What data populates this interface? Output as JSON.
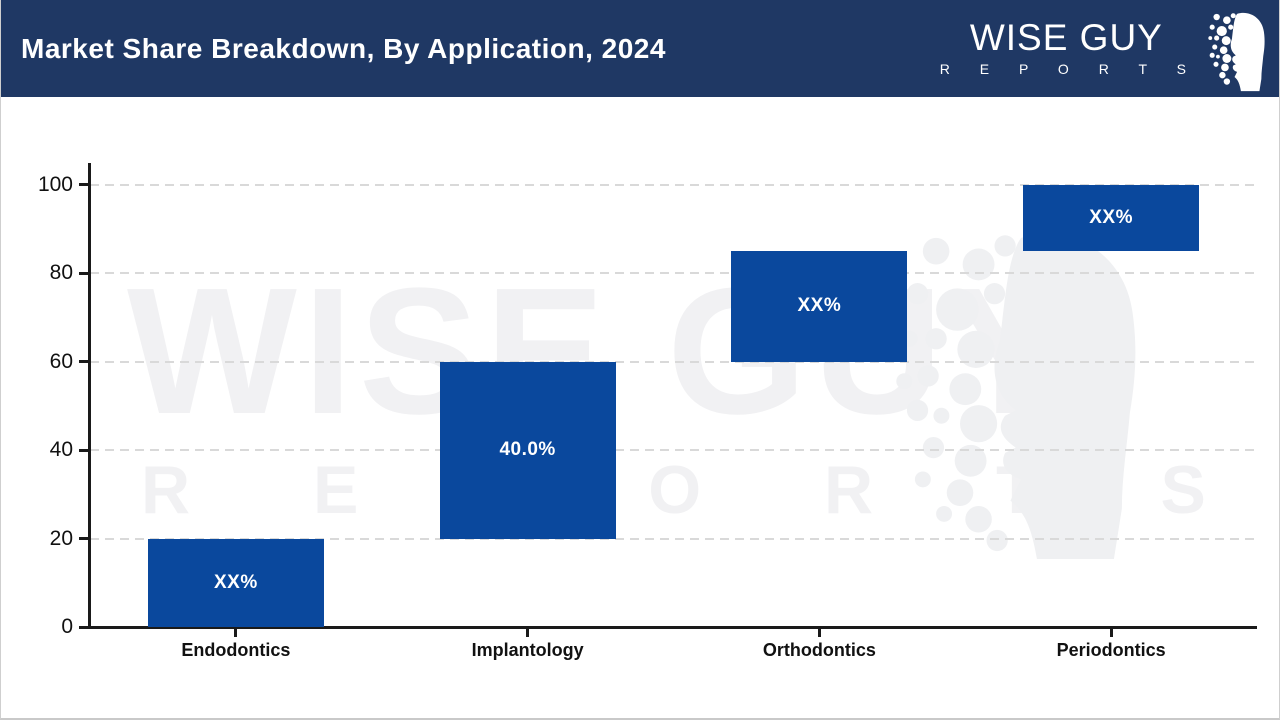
{
  "page": {
    "background": "#ffffff",
    "border_color": "#c9c9c9"
  },
  "header": {
    "background": "#1f3864",
    "logo": {
      "line1": "WISE GUY",
      "line2": "R E P O R T S"
    }
  },
  "watermark": {
    "line1": "WISE GUY",
    "line2": "R E P O R T S"
  },
  "chart_data": {
    "type": "bar",
    "subtype": "floating-waterfall-segments",
    "title": "Market Share Breakdown, By Application, 2024",
    "categories": [
      "Endodontics",
      "Implantology",
      "Orthodontics",
      "Periodontics"
    ],
    "bars": [
      {
        "category": "Endodontics",
        "start": 0,
        "end": 20,
        "value": 20,
        "label": "XX%"
      },
      {
        "category": "Implantology",
        "start": 20,
        "end": 60,
        "value": 40,
        "label": "40.0%"
      },
      {
        "category": "Orthodontics",
        "start": 60,
        "end": 85,
        "value": 25,
        "label": "XX%"
      },
      {
        "category": "Periodontics",
        "start": 85,
        "end": 100,
        "value": 15,
        "label": "XX%"
      }
    ],
    "xlabel": "",
    "ylabel": "",
    "ylim": [
      0,
      100
    ],
    "yticks": [
      0,
      20,
      40,
      60,
      80,
      100
    ],
    "grid": "dashed-horizontal",
    "legend": "none",
    "bar_color": "#0a489d",
    "bar_label_color": "#ffffff",
    "axis_color": "#1a1a1a",
    "gridline_color": "#d9d9d9"
  }
}
